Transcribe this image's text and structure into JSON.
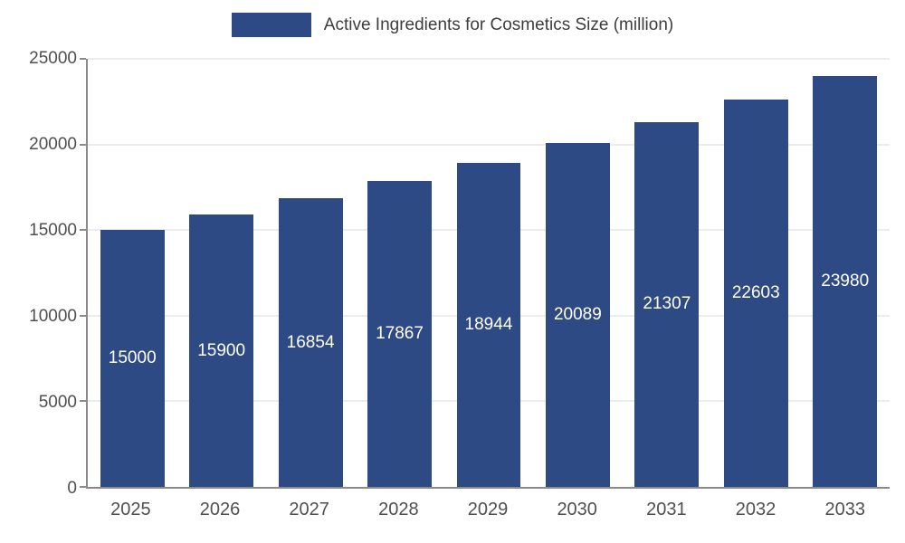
{
  "legend": {
    "label": "Active Ingredients for Cosmetics Size (million)"
  },
  "chart_data": {
    "type": "bar",
    "title": "Active Ingredients for Cosmetics Size (million)",
    "categories": [
      "2025",
      "2026",
      "2027",
      "2028",
      "2029",
      "2030",
      "2031",
      "2032",
      "2033"
    ],
    "values": [
      15000,
      15900,
      16854,
      17867,
      18944,
      20089,
      21307,
      22603,
      23980
    ],
    "xlabel": "",
    "ylabel": "",
    "ylim": [
      0,
      25000
    ],
    "yticks": [
      0,
      5000,
      10000,
      15000,
      20000,
      25000
    ],
    "grid": true,
    "legend_position": "top",
    "bar_value_labels_inside": true,
    "colors": {
      "bar": "#2e4a85",
      "bar_label": "#ffffff",
      "axis": "#8a8a8a",
      "grid": "#d9d9d9",
      "tick_label": "#4f4f4f",
      "title": "#3d3d3d"
    }
  }
}
